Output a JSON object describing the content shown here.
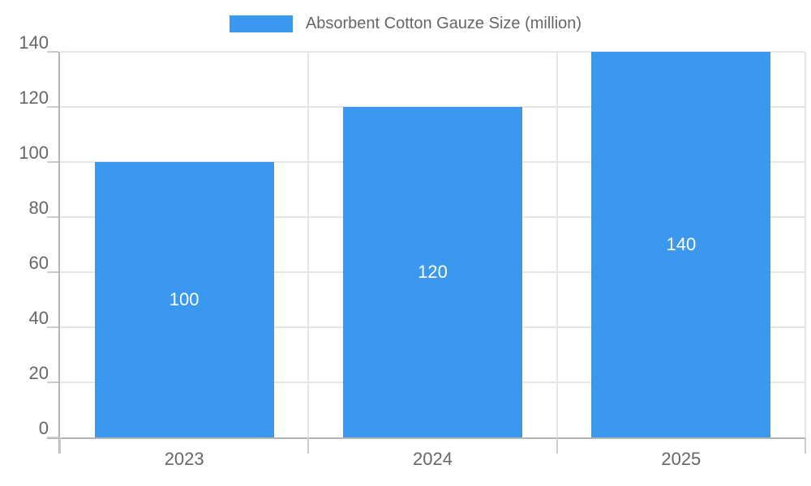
{
  "chart_data": {
    "type": "bar",
    "title": "",
    "legend_entries": [
      "Absorbent Cotton Gauze Size (million)"
    ],
    "legend_position": "top-center",
    "categories": [
      "2023",
      "2024",
      "2025"
    ],
    "series": [
      {
        "name": "Absorbent Cotton Gauze Size (million)",
        "values": [
          100,
          120,
          140
        ]
      }
    ],
    "value_labels": [
      "100",
      "120",
      "140"
    ],
    "xlabel": "",
    "ylabel": "",
    "ylim": [
      0,
      140
    ],
    "yticks": [
      0,
      20,
      40,
      60,
      80,
      100,
      120,
      140
    ],
    "grid": "on",
    "colors": {
      "bar": "#3a99ee",
      "value_label_text": "#ffffff",
      "axis_line": "#b3b3b3",
      "tick_line": "#cccccc",
      "grid_line": "#e6e6e6",
      "axis_text": "#666666",
      "legend_text": "#666666",
      "background": "#ffffff"
    }
  }
}
